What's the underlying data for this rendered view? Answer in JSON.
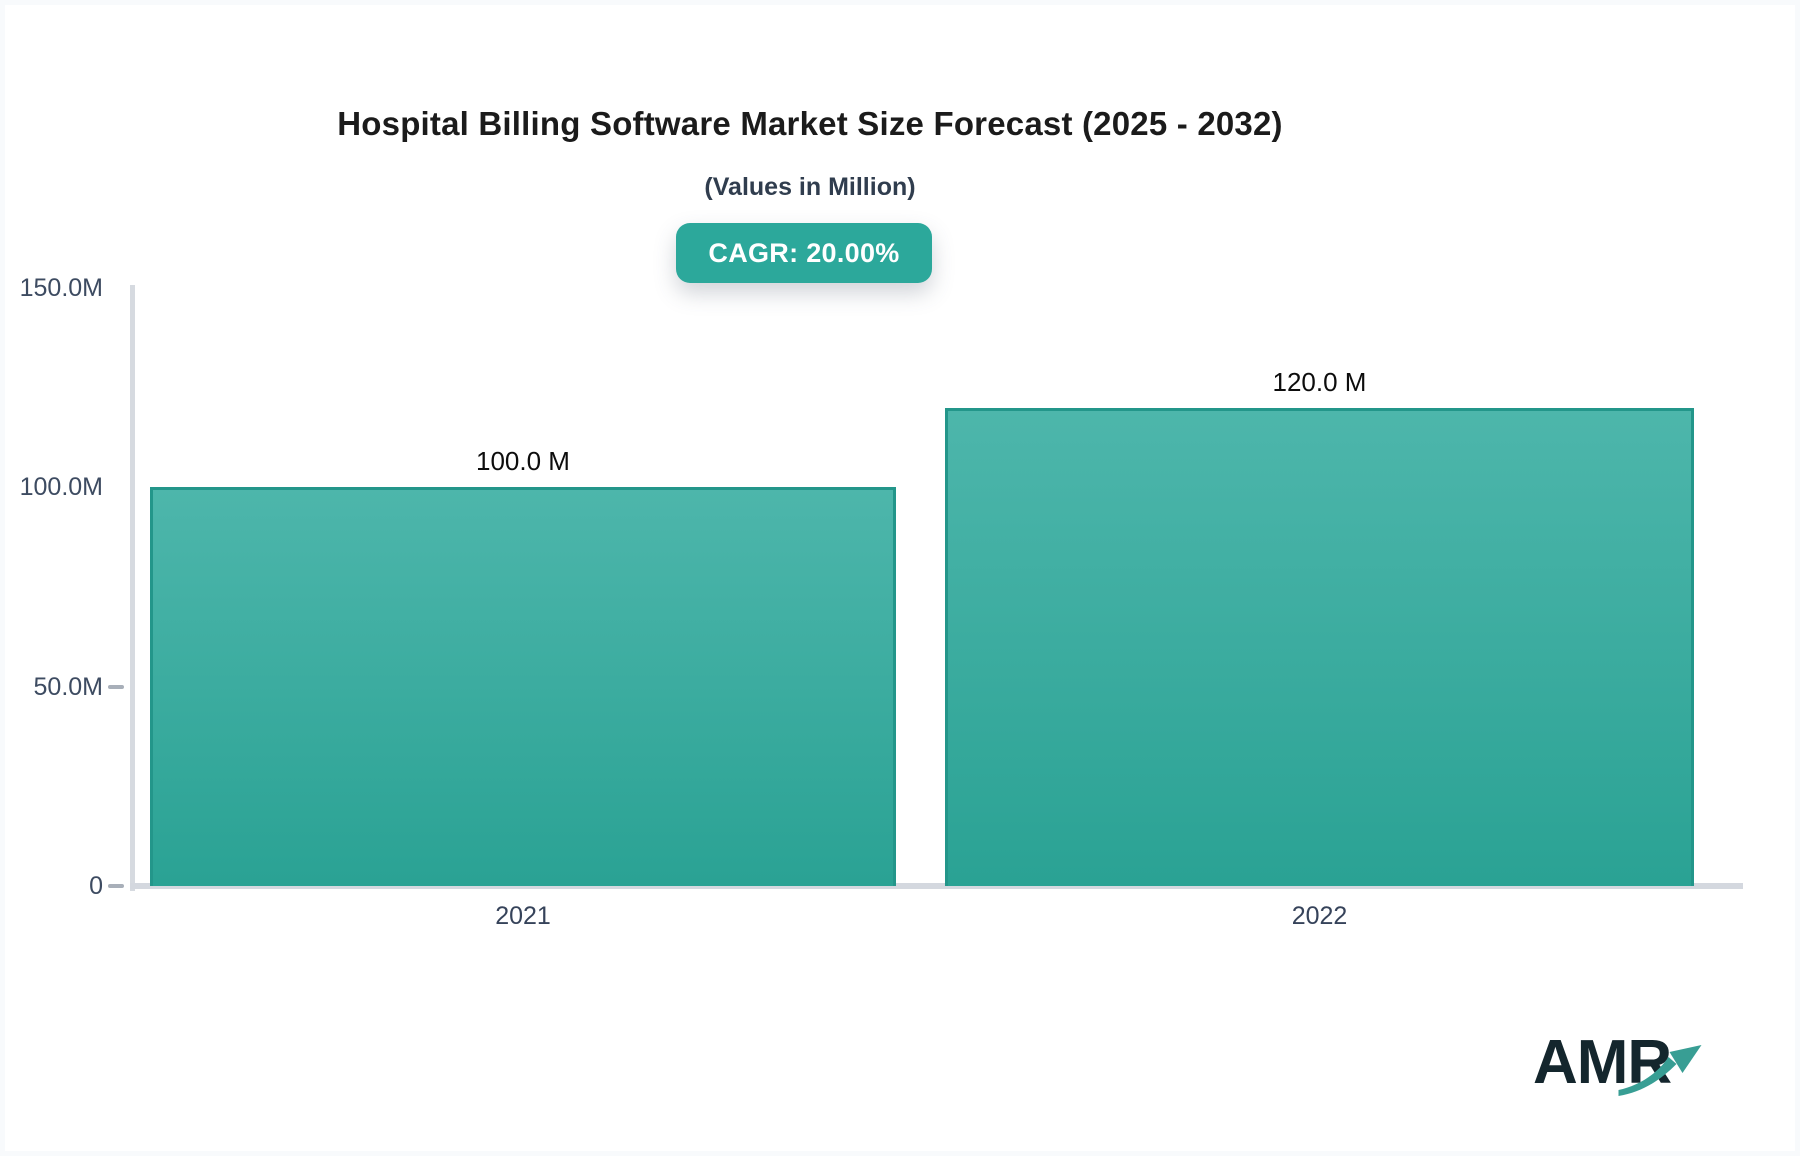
{
  "header": {
    "title": "Hospital Billing Software Market Size Forecast (2025 - 2032)",
    "subtitle": "(Values in Million)",
    "cagr_badge": "CAGR: 20.00%"
  },
  "chart_data": {
    "type": "bar",
    "title": "Hospital Billing Software Market Size Forecast (2025 - 2032)",
    "subtitle": "(Values in Million)",
    "unit": "Million",
    "cagr_percent": "20.00%",
    "categories": [
      "2021",
      "2022"
    ],
    "values": [
      100.0,
      120.0
    ],
    "value_labels": [
      "100.0 M",
      "120.0 M"
    ],
    "ylim": [
      0,
      150
    ],
    "yticks": [
      "0",
      "50.0M",
      "100.0M",
      "150.0M"
    ],
    "grid": false,
    "legend_position": "none",
    "xlabel": "",
    "ylabel": ""
  },
  "logo": {
    "text": "AMR",
    "arrow_icon": "trend-up-arrow"
  },
  "colors": {
    "accent_teal": "#2ca89b",
    "bar_gradient_top": "#4db6ab",
    "bar_gradient_bottom": "#2aa294",
    "bar_border": "#23968a",
    "axis_line": "#d6dae0",
    "tick_label": "#3d4b61",
    "title_text": "#1b1b1b",
    "logo_text": "#14262d",
    "logo_arrow": "#389e94"
  }
}
